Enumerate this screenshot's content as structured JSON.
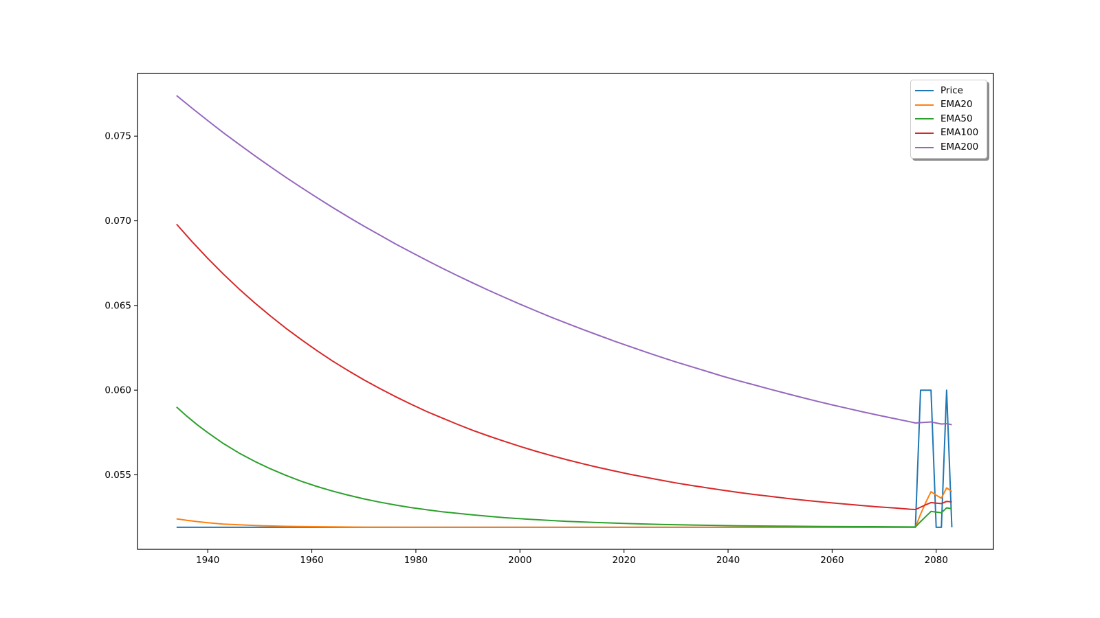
{
  "figure": {
    "background_color": "#ffffff",
    "title": ""
  },
  "chart_data": {
    "type": "line",
    "title": "",
    "xlabel": "",
    "ylabel": "",
    "grid": false,
    "frame": true,
    "xlim": [
      1926.5,
      2091
    ],
    "ylim": [
      0.0506,
      0.0787
    ],
    "x_tick_values": [
      1940,
      1960,
      1980,
      2000,
      2020,
      2040,
      2060,
      2080
    ],
    "x_tick_labels": [
      "1940",
      "1960",
      "1980",
      "2000",
      "2020",
      "2040",
      "2060",
      "2080"
    ],
    "y_tick_values": [
      0.055,
      0.06,
      0.065,
      0.07,
      0.075
    ],
    "y_tick_labels": [
      "0.055",
      "0.060",
      "0.065",
      "0.070",
      "0.075"
    ],
    "axis_color": "#000000",
    "tick_label_color": "#000000",
    "legend": {
      "position": "upper right",
      "shadow": true,
      "border_color": "#cccccc"
    },
    "series": [
      {
        "name": "Price",
        "color": "#1f77b4",
        "points": [
          [
            1934,
            0.0519
          ],
          [
            2076,
            0.0519
          ],
          [
            2077,
            0.06
          ],
          [
            2079,
            0.06
          ],
          [
            2080,
            0.0519
          ],
          [
            2081,
            0.0519
          ],
          [
            2082,
            0.06
          ],
          [
            2083,
            0.0519
          ]
        ]
      },
      {
        "name": "EMA20",
        "color": "#ff7f0e",
        "points": [
          [
            1934,
            0.0524
          ],
          [
            1936,
            0.05231
          ],
          [
            1938,
            0.05224
          ],
          [
            1940,
            0.05217
          ],
          [
            1943,
            0.05209
          ],
          [
            1946,
            0.05205
          ],
          [
            1950,
            0.052
          ],
          [
            1955,
            0.05196
          ],
          [
            1960,
            0.05194
          ],
          [
            1970,
            0.05191
          ],
          [
            1985,
            0.0519
          ],
          [
            2076,
            0.0519
          ],
          [
            2077,
            0.05267
          ],
          [
            2078,
            0.05337
          ],
          [
            2079,
            0.054
          ],
          [
            2080,
            0.0538
          ],
          [
            2081,
            0.05362
          ],
          [
            2082,
            0.05423
          ],
          [
            2083,
            0.05401
          ]
        ]
      },
      {
        "name": "EMA50",
        "color": "#2ca02c",
        "points": [
          [
            1934,
            0.059
          ],
          [
            1936,
            0.05846
          ],
          [
            1938,
            0.05795
          ],
          [
            1940,
            0.05749
          ],
          [
            1943,
            0.05685
          ],
          [
            1946,
            0.05629
          ],
          [
            1949,
            0.0558
          ],
          [
            1952,
            0.05536
          ],
          [
            1955,
            0.05497
          ],
          [
            1958,
            0.05462
          ],
          [
            1961,
            0.05431
          ],
          [
            1964,
            0.05404
          ],
          [
            1967,
            0.0538
          ],
          [
            1970,
            0.05358
          ],
          [
            1973,
            0.05339
          ],
          [
            1976,
            0.05322
          ],
          [
            1979,
            0.05307
          ],
          [
            1982,
            0.05294
          ],
          [
            1985,
            0.05282
          ],
          [
            1991,
            0.05263
          ],
          [
            1997,
            0.05247
          ],
          [
            2003,
            0.05235
          ],
          [
            2009,
            0.05225
          ],
          [
            2015,
            0.05218
          ],
          [
            2021,
            0.05212
          ],
          [
            2027,
            0.05207
          ],
          [
            2034,
            0.05203
          ],
          [
            2042,
            0.05199
          ],
          [
            2050,
            0.05197
          ],
          [
            2058,
            0.05195
          ],
          [
            2066,
            0.05194
          ],
          [
            2073,
            0.05193
          ],
          [
            2076,
            0.05192
          ],
          [
            2077,
            0.05224
          ],
          [
            2078,
            0.05254
          ],
          [
            2079,
            0.05284
          ],
          [
            2080,
            0.0528
          ],
          [
            2081,
            0.05276
          ],
          [
            2082,
            0.05305
          ],
          [
            2083,
            0.053
          ]
        ]
      },
      {
        "name": "EMA100",
        "color": "#d62728",
        "points": [
          [
            1934,
            0.0698
          ],
          [
            1937,
            0.06876
          ],
          [
            1940,
            0.06778
          ],
          [
            1943,
            0.06685
          ],
          [
            1946,
            0.06598
          ],
          [
            1949,
            0.06516
          ],
          [
            1952,
            0.06439
          ],
          [
            1955,
            0.06366
          ],
          [
            1958,
            0.06298
          ],
          [
            1961,
            0.06233
          ],
          [
            1964,
            0.06172
          ],
          [
            1967,
            0.06115
          ],
          [
            1970,
            0.06061
          ],
          [
            1973,
            0.06011
          ],
          [
            1976,
            0.05963
          ],
          [
            1979,
            0.05918
          ],
          [
            1982,
            0.05875
          ],
          [
            1985,
            0.05836
          ],
          [
            1988,
            0.05798
          ],
          [
            1991,
            0.05762
          ],
          [
            1994,
            0.05729
          ],
          [
            1997,
            0.05698
          ],
          [
            2000,
            0.05668
          ],
          [
            2003,
            0.0564
          ],
          [
            2006,
            0.05614
          ],
          [
            2009,
            0.05589
          ],
          [
            2012,
            0.05566
          ],
          [
            2015,
            0.05544
          ],
          [
            2018,
            0.05524
          ],
          [
            2021,
            0.05504
          ],
          [
            2024,
            0.05486
          ],
          [
            2027,
            0.05469
          ],
          [
            2030,
            0.05452
          ],
          [
            2033,
            0.05437
          ],
          [
            2036,
            0.05423
          ],
          [
            2039,
            0.05409
          ],
          [
            2042,
            0.05396
          ],
          [
            2045,
            0.05384
          ],
          [
            2048,
            0.05373
          ],
          [
            2051,
            0.05362
          ],
          [
            2054,
            0.05352
          ],
          [
            2057,
            0.05343
          ],
          [
            2060,
            0.05334
          ],
          [
            2063,
            0.05326
          ],
          [
            2066,
            0.05318
          ],
          [
            2069,
            0.0531
          ],
          [
            2072,
            0.05304
          ],
          [
            2075,
            0.05297
          ],
          [
            2076,
            0.05295
          ],
          [
            2077,
            0.05309
          ],
          [
            2078,
            0.05323
          ],
          [
            2079,
            0.05336
          ],
          [
            2080,
            0.05333
          ],
          [
            2081,
            0.0533
          ],
          [
            2082,
            0.05343
          ],
          [
            2083,
            0.0534
          ]
        ]
      },
      {
        "name": "EMA200",
        "color": "#9467bd",
        "points": [
          [
            1934,
            0.0774
          ],
          [
            1937,
            0.07665
          ],
          [
            1940,
            0.07592
          ],
          [
            1943,
            0.0752
          ],
          [
            1946,
            0.07452
          ],
          [
            1949,
            0.07385
          ],
          [
            1952,
            0.0732
          ],
          [
            1955,
            0.07257
          ],
          [
            1958,
            0.07196
          ],
          [
            1961,
            0.07137
          ],
          [
            1964,
            0.07079
          ],
          [
            1967,
            0.07023
          ],
          [
            1970,
            0.06969
          ],
          [
            1973,
            0.06917
          ],
          [
            1976,
            0.06865
          ],
          [
            1979,
            0.06816
          ],
          [
            1982,
            0.06768
          ],
          [
            1985,
            0.06721
          ],
          [
            1988,
            0.06676
          ],
          [
            1991,
            0.06632
          ],
          [
            1994,
            0.06589
          ],
          [
            1997,
            0.06548
          ],
          [
            2000,
            0.06508
          ],
          [
            2003,
            0.06469
          ],
          [
            2006,
            0.06431
          ],
          [
            2009,
            0.06395
          ],
          [
            2012,
            0.06359
          ],
          [
            2015,
            0.06325
          ],
          [
            2018,
            0.06291
          ],
          [
            2021,
            0.06259
          ],
          [
            2024,
            0.06227
          ],
          [
            2027,
            0.06196
          ],
          [
            2030,
            0.06166
          ],
          [
            2033,
            0.06138
          ],
          [
            2036,
            0.0611
          ],
          [
            2039,
            0.06082
          ],
          [
            2042,
            0.06056
          ],
          [
            2045,
            0.06031
          ],
          [
            2048,
            0.06006
          ],
          [
            2051,
            0.05982
          ],
          [
            2054,
            0.05958
          ],
          [
            2057,
            0.05935
          ],
          [
            2060,
            0.05913
          ],
          [
            2063,
            0.05892
          ],
          [
            2066,
            0.05871
          ],
          [
            2069,
            0.05851
          ],
          [
            2072,
            0.05832
          ],
          [
            2075,
            0.05813
          ],
          [
            2076,
            0.05806
          ],
          [
            2077,
            0.05808
          ],
          [
            2078,
            0.0581
          ],
          [
            2079,
            0.05812
          ],
          [
            2080,
            0.05806
          ],
          [
            2081,
            0.058
          ],
          [
            2082,
            0.05802
          ],
          [
            2083,
            0.05796
          ]
        ]
      }
    ]
  }
}
